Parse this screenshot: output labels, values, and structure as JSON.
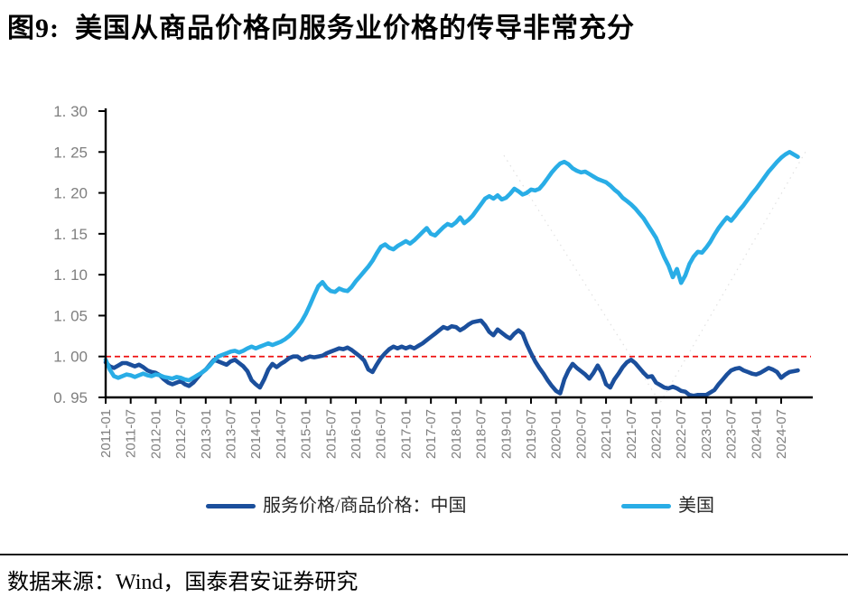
{
  "figure": {
    "title": "图9:  美国从商品价格向服务业价格的传导非常充分",
    "source": "数据来源：Wind，国泰君安证券研究"
  },
  "colors": {
    "china_line": "#1b4f9c",
    "us_line": "#29ade6",
    "baseline": "#ee1111",
    "axis": "#000000",
    "tick_label": "#7f7f7f",
    "watermark": "#d9d9d9"
  },
  "chart_data": {
    "type": "line",
    "title": "美国从商品价格向服务业价格的传导非常充分",
    "xlabel": "",
    "ylabel": "",
    "ylim": [
      0.95,
      1.3
    ],
    "grid": false,
    "legend_position": "bottom",
    "x_start_month": "2011-01",
    "x_months_per_point": 1,
    "x_tick_labels": [
      "2011-01",
      "2011-07",
      "2012-01",
      "2012-07",
      "2013-01",
      "2013-07",
      "2014-01",
      "2014-07",
      "2015-01",
      "2015-07",
      "2016-01",
      "2016-07",
      "2017-01",
      "2017-07",
      "2018-01",
      "2018-07",
      "2019-01",
      "2019-07",
      "2020-01",
      "2020-07",
      "2021-01",
      "2021-07",
      "2022-01",
      "2022-07",
      "2023-01",
      "2023-07",
      "2024-01",
      "2024-07"
    ],
    "y_tick_values": [
      0.95,
      1.0,
      1.05,
      1.1,
      1.15,
      1.2,
      1.25,
      1.3
    ],
    "y_tick_labels": [
      "0. 95",
      "1. 00",
      "1. 05",
      "1. 10",
      "1. 15",
      "1. 20",
      "1. 25",
      "1. 30"
    ],
    "baseline": {
      "value": 1.0,
      "style": "dashed",
      "color": "#ee1111"
    },
    "series": [
      {
        "name": "服务价格/商品价格：中国",
        "color": "#1b4f9c",
        "values": [
          0.993,
          0.988,
          0.986,
          0.989,
          0.992,
          0.992,
          0.99,
          0.988,
          0.99,
          0.987,
          0.983,
          0.981,
          0.98,
          0.977,
          0.972,
          0.968,
          0.966,
          0.968,
          0.97,
          0.966,
          0.964,
          0.968,
          0.974,
          0.98,
          0.984,
          0.99,
          0.996,
          0.994,
          0.992,
          0.99,
          0.994,
          0.996,
          0.992,
          0.988,
          0.982,
          0.971,
          0.966,
          0.962,
          0.972,
          0.984,
          0.991,
          0.987,
          0.991,
          0.994,
          0.998,
          1.0,
          1.0,
          0.996,
          0.998,
          1.0,
          0.999,
          1.0,
          1.001,
          1.004,
          1.006,
          1.008,
          1.01,
          1.009,
          1.011,
          1.008,
          1.004,
          1.0,
          0.995,
          0.984,
          0.981,
          0.99,
          0.998,
          1.004,
          1.009,
          1.012,
          1.01,
          1.012,
          1.01,
          1.012,
          1.01,
          1.013,
          1.016,
          1.02,
          1.024,
          1.028,
          1.032,
          1.036,
          1.034,
          1.037,
          1.036,
          1.032,
          1.035,
          1.039,
          1.042,
          1.043,
          1.044,
          1.038,
          1.03,
          1.026,
          1.033,
          1.029,
          1.025,
          1.022,
          1.028,
          1.032,
          1.028,
          1.015,
          1.004,
          0.994,
          0.986,
          0.979,
          0.971,
          0.964,
          0.958,
          0.955,
          0.972,
          0.983,
          0.991,
          0.986,
          0.982,
          0.978,
          0.973,
          0.98,
          0.989,
          0.98,
          0.966,
          0.962,
          0.972,
          0.979,
          0.987,
          0.993,
          0.996,
          0.992,
          0.986,
          0.98,
          0.975,
          0.976,
          0.968,
          0.965,
          0.962,
          0.961,
          0.963,
          0.961,
          0.958,
          0.957,
          0.953,
          0.952,
          0.953,
          0.953,
          0.953,
          0.956,
          0.959,
          0.966,
          0.972,
          0.978,
          0.983,
          0.985,
          0.986,
          0.983,
          0.981,
          0.979,
          0.978,
          0.98,
          0.983,
          0.986,
          0.984,
          0.981,
          0.974,
          0.978,
          0.981,
          0.982,
          0.983
        ]
      },
      {
        "name": "美国",
        "color": "#29ade6",
        "values": [
          0.996,
          0.984,
          0.976,
          0.974,
          0.976,
          0.978,
          0.977,
          0.975,
          0.977,
          0.979,
          0.977,
          0.976,
          0.978,
          0.977,
          0.975,
          0.974,
          0.973,
          0.975,
          0.974,
          0.972,
          0.971,
          0.974,
          0.977,
          0.98,
          0.984,
          0.989,
          0.995,
          1.0,
          1.002,
          1.004,
          1.006,
          1.007,
          1.005,
          1.007,
          1.01,
          1.012,
          1.01,
          1.012,
          1.014,
          1.016,
          1.014,
          1.016,
          1.018,
          1.021,
          1.025,
          1.03,
          1.036,
          1.043,
          1.052,
          1.063,
          1.075,
          1.086,
          1.091,
          1.084,
          1.08,
          1.079,
          1.083,
          1.081,
          1.08,
          1.085,
          1.092,
          1.098,
          1.104,
          1.11,
          1.117,
          1.126,
          1.134,
          1.137,
          1.133,
          1.131,
          1.135,
          1.138,
          1.141,
          1.138,
          1.142,
          1.147,
          1.152,
          1.157,
          1.15,
          1.148,
          1.153,
          1.158,
          1.162,
          1.16,
          1.164,
          1.17,
          1.163,
          1.167,
          1.172,
          1.179,
          1.186,
          1.193,
          1.196,
          1.193,
          1.197,
          1.192,
          1.194,
          1.199,
          1.205,
          1.202,
          1.198,
          1.2,
          1.204,
          1.203,
          1.205,
          1.211,
          1.218,
          1.225,
          1.231,
          1.236,
          1.238,
          1.235,
          1.23,
          1.227,
          1.225,
          1.226,
          1.223,
          1.22,
          1.217,
          1.215,
          1.213,
          1.209,
          1.204,
          1.2,
          1.194,
          1.19,
          1.186,
          1.181,
          1.175,
          1.169,
          1.161,
          1.153,
          1.145,
          1.133,
          1.121,
          1.111,
          1.097,
          1.107,
          1.09,
          1.099,
          1.113,
          1.122,
          1.128,
          1.127,
          1.133,
          1.14,
          1.149,
          1.157,
          1.164,
          1.17,
          1.166,
          1.172,
          1.179,
          1.185,
          1.192,
          1.199,
          1.205,
          1.212,
          1.219,
          1.226,
          1.232,
          1.238,
          1.243,
          1.247,
          1.25,
          1.247,
          1.244
        ]
      }
    ]
  }
}
